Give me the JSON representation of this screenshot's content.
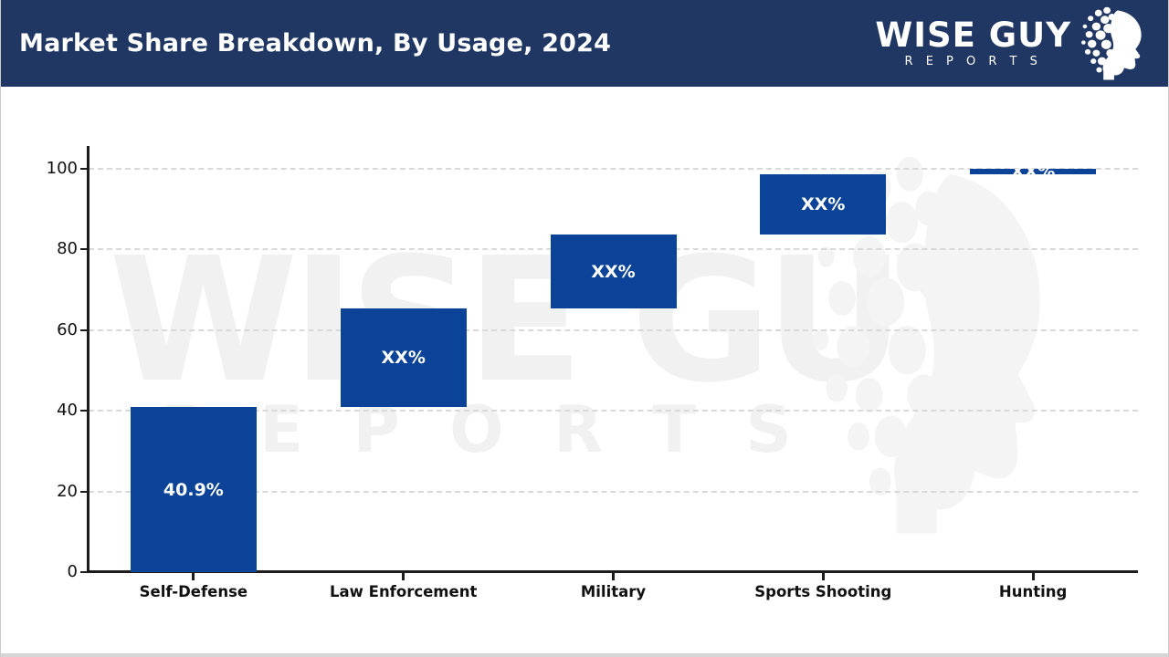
{
  "header": {
    "title": "Market Share Breakdown, By Usage, 2024",
    "brand": {
      "line1": "WISE GUY",
      "line2": "R E P O R T S"
    }
  },
  "watermark": {
    "line1": "WISE GUY",
    "line2": "R E P O R T S"
  },
  "colors": {
    "header_bg": "#203764",
    "bar": "#0a4397",
    "axis": "#1c1c1c",
    "gridline": "#d9d9d9",
    "bar_label_text": "#ffffff",
    "footer_strip": "#d6d6d6"
  },
  "chart_data": {
    "type": "bar",
    "subtype": "waterfall",
    "title": "Market Share Breakdown, By Usage, 2024",
    "xlabel": "",
    "ylabel": "",
    "categories": [
      "Self-Defense",
      "Law Enforcement",
      "Military",
      "Sports Shooting",
      "Hunting"
    ],
    "segments": [
      {
        "category": "Self-Defense",
        "start": 0,
        "end": 40.9,
        "label": "40.9%"
      },
      {
        "category": "Law Enforcement",
        "start": 40.9,
        "end": 65.4,
        "label": "XX%"
      },
      {
        "category": "Military",
        "start": 65.4,
        "end": 83.6,
        "label": "XX%"
      },
      {
        "category": "Sports Shooting",
        "start": 83.6,
        "end": 98.6,
        "label": "XX%"
      },
      {
        "category": "Hunting",
        "start": 98.6,
        "end": 100,
        "label": "XX%"
      }
    ],
    "y_ticks": [
      0,
      20,
      40,
      60,
      80,
      100
    ],
    "ylim": [
      0,
      105
    ],
    "grid": true,
    "grid_style": "dashed",
    "legend": false
  }
}
